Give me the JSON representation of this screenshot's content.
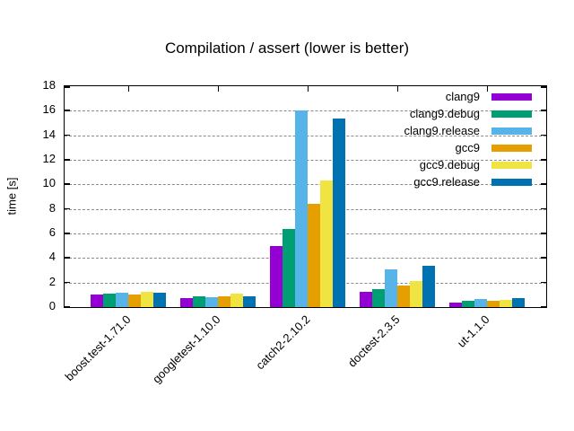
{
  "chart_data": {
    "type": "bar",
    "title": "Compilation / assert (lower is better)",
    "xlabel": "",
    "ylabel": "time [s]",
    "ylim": [
      0,
      18
    ],
    "yticks": [
      0,
      2,
      4,
      6,
      8,
      10,
      12,
      14,
      16,
      18
    ],
    "grid": "horizontal-dashed",
    "legend_position": "top-right-inside",
    "categories": [
      "boost.test-1.71.0",
      "googletest-1.10.0",
      "catch2-2.10.2",
      "doctest-2.3.5",
      "ut-1.1.0"
    ],
    "series": [
      {
        "name": "clang9",
        "color": "#9400d3",
        "values": [
          1.0,
          0.75,
          5.0,
          1.25,
          0.4
        ]
      },
      {
        "name": "clang9.debug",
        "color": "#009e73",
        "values": [
          1.1,
          0.85,
          6.4,
          1.5,
          0.5
        ]
      },
      {
        "name": "clang9.release",
        "color": "#56b4e9",
        "values": [
          1.2,
          0.8,
          16.0,
          3.1,
          0.65
        ]
      },
      {
        "name": "gcc9",
        "color": "#e69f00",
        "values": [
          1.05,
          0.9,
          8.4,
          1.75,
          0.5
        ]
      },
      {
        "name": "gcc9.debug",
        "color": "#f0e442",
        "values": [
          1.25,
          1.1,
          10.3,
          2.1,
          0.6
        ]
      },
      {
        "name": "gcc9.release",
        "color": "#0072b2",
        "values": [
          1.15,
          0.9,
          15.4,
          3.4,
          0.75
        ]
      }
    ]
  },
  "colors": {
    "axis": "#000000",
    "gridline": "#8a8a8a",
    "background": "#ffffff"
  }
}
